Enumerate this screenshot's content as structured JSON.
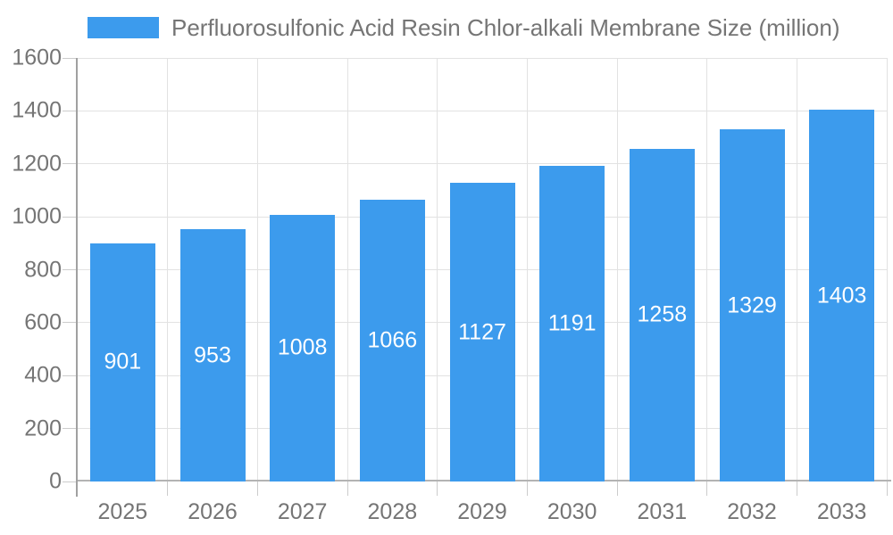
{
  "chart_data": {
    "type": "bar",
    "title": "Perfluorosulfonic Acid Resin Chlor-alkali Membrane Size (million)",
    "categories": [
      "2025",
      "2026",
      "2027",
      "2028",
      "2029",
      "2030",
      "2031",
      "2032",
      "2033"
    ],
    "values": [
      901,
      953,
      1008,
      1066,
      1127,
      1191,
      1258,
      1329,
      1403
    ],
    "series": [
      {
        "name": "Perfluorosulfonic Acid Resin Chlor-alkali Membrane Size (million)",
        "values": [
          901,
          953,
          1008,
          1066,
          1127,
          1191,
          1258,
          1329,
          1403
        ]
      }
    ],
    "value_labels": [
      "901",
      "953",
      "1008",
      "1066",
      "1127",
      "1191",
      "1258",
      "1329",
      "1403"
    ],
    "xlabel": "",
    "ylabel": "",
    "ylim": [
      0,
      1600
    ],
    "ytick_step": 200,
    "ytick_labels": [
      "0",
      "200",
      "400",
      "600",
      "800",
      "1000",
      "1200",
      "1400",
      "1600"
    ],
    "grid": true,
    "legend_position": "top-left",
    "value_label_position": "inside-middle",
    "colors": {
      "bar": "#3c9bed",
      "legend_swatch": "#3c9bed",
      "axis_text": "#757575",
      "legend_text": "#757575",
      "value_label_text": "#ffffff",
      "grid_line": "#e2e2e2",
      "y_axis_line": "#a0a0a0",
      "x_axis_line": "#b3b3b3",
      "tick_line": "#cccccc",
      "background": "#ffffff"
    }
  }
}
